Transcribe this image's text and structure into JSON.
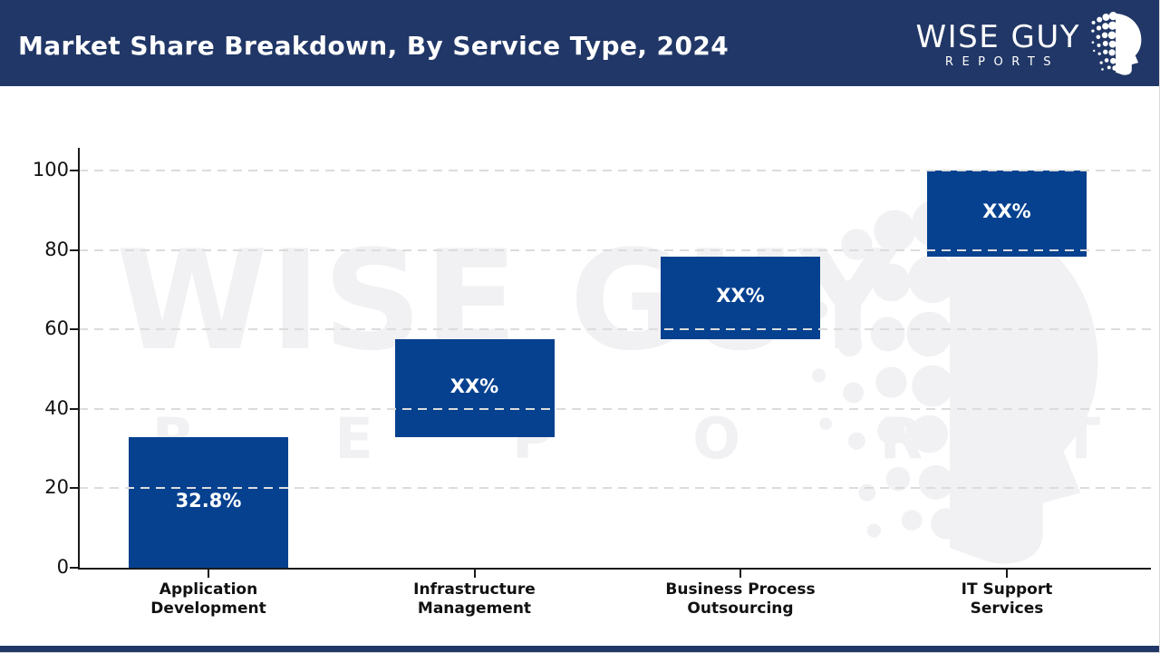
{
  "header": {
    "title": "Market Share Breakdown, By Service Type, 2024",
    "logo": {
      "wordmark": "WISE GUY",
      "subtext": "REPORTS"
    }
  },
  "watermark": {
    "wordmark": "WISE GUY",
    "subtext": "R E P O R T S"
  },
  "footer": {
    "accent_color": "#213767"
  },
  "colors": {
    "header_background": "#213767",
    "bar_fill": "#05418f",
    "bar_label_text": "#ffffff",
    "axis_text": "#111111",
    "gridline": "#dcdcdc",
    "watermark": "#f1f1f3",
    "chart_background": "#ffffff"
  },
  "chart_data": {
    "type": "bar",
    "subtype": "floating-segment-waterfall",
    "title": "Market Share Breakdown, By Service Type, 2024",
    "xlabel": "",
    "ylabel": "",
    "categories": [
      "Application Development",
      "Infrastructure Management",
      "Business Process Outsourcing",
      "IT Support Services"
    ],
    "category_lines": [
      [
        "Application",
        "Development"
      ],
      [
        "Infrastructure",
        "Management"
      ],
      [
        "Business Process",
        "Outsourcing"
      ],
      [
        "IT Support",
        "Services"
      ]
    ],
    "bars": [
      {
        "category": "Application Development",
        "start": 0,
        "end": 32.8,
        "size": 32.8,
        "label": "32.8%"
      },
      {
        "category": "Infrastructure Management",
        "start": 32.8,
        "end": 57.6,
        "size": 24.8,
        "label": "XX%"
      },
      {
        "category": "Business Process Outsourcing",
        "start": 57.6,
        "end": 78.4,
        "size": 20.8,
        "label": "XX%"
      },
      {
        "category": "IT Support Services",
        "start": 78.4,
        "end": 100,
        "size": 21.6,
        "label": "XX%"
      }
    ],
    "y_ticks": [
      0,
      20,
      40,
      60,
      80,
      100
    ],
    "ylim": [
      0,
      105
    ],
    "grid": "horizontal-dashed",
    "legend": "none"
  }
}
